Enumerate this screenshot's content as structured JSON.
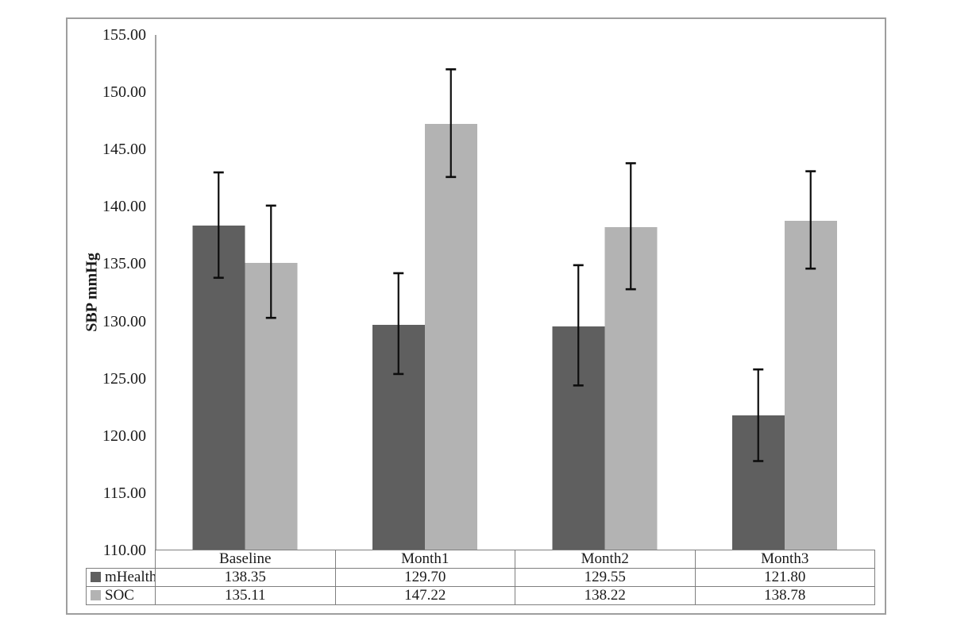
{
  "figure": {
    "y_axis_title": "SBP mmHg"
  },
  "chart_data": {
    "type": "bar",
    "title": "",
    "xlabel": "",
    "ylabel": "SBP mmHg",
    "ylim": [
      110,
      155
    ],
    "ytick_step": 5,
    "ytick_labels": [
      "155.00",
      "150.00",
      "145.00",
      "140.00",
      "135.00",
      "130.00",
      "125.00",
      "120.00",
      "115.00",
      "110.00"
    ],
    "grid": false,
    "legend_position": "table-left",
    "categories": [
      "Baseline",
      "Month1",
      "Month2",
      "Month3"
    ],
    "series": [
      {
        "name": "mHealth",
        "color": "#5f5f5f",
        "values": [
          138.35,
          129.7,
          129.55,
          121.8
        ],
        "display_values": [
          "138.35",
          "129.70",
          "129.55",
          "121.80"
        ],
        "error_upper": [
          143.0,
          134.2,
          134.9,
          125.8
        ],
        "error_lower": [
          133.8,
          125.4,
          124.4,
          117.8
        ]
      },
      {
        "name": "SOC",
        "color": "#b3b3b3",
        "values": [
          135.11,
          147.22,
          138.22,
          138.78
        ],
        "display_values": [
          "135.11",
          "147.22",
          "138.22",
          "138.78"
        ],
        "error_upper": [
          140.1,
          152.0,
          143.8,
          143.1
        ],
        "error_lower": [
          130.3,
          142.6,
          132.8,
          134.6
        ]
      }
    ],
    "colors": {
      "axis_line": "#a3a3a3",
      "table_border": "#7f7f7f",
      "frame_border": "#9e9e9e",
      "error_bar": "#0d0d0d",
      "text": "#1a1a1a"
    }
  }
}
